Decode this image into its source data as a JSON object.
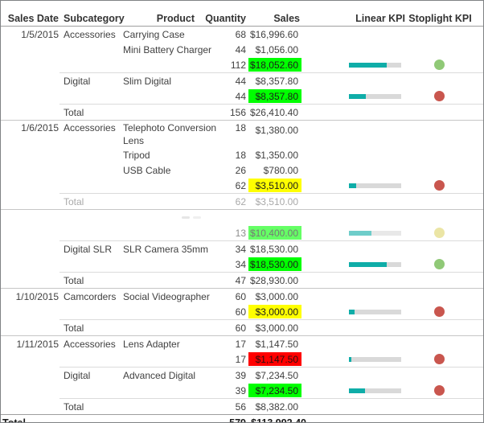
{
  "header": {
    "columns": [
      "Sales Date",
      "Subcategory",
      "Product",
      "Quantity",
      "Sales",
      "Linear KPI",
      "Stoplight KPI"
    ]
  },
  "colors": {
    "cell_green": "#00ff00",
    "cell_yellow": "#ffff00",
    "cell_red": "#ff0000",
    "bar_fill": "#0fada8",
    "bar_track": "#d9d9d9",
    "stoplight_green": "#90c977",
    "stoplight_red": "#c9564e",
    "stoplight_yellow": "#ddd469"
  },
  "rows": [
    {
      "type": "data",
      "date": "1/5/2015",
      "sub": "Accessories",
      "product": "Carrying Case",
      "qty": "68",
      "sales": "$16,996.60"
    },
    {
      "type": "data",
      "product": "Mini Battery Charger",
      "qty": "44",
      "sales": "$1,056.00"
    },
    {
      "type": "subtotal",
      "qty": "112",
      "sales": "$18,052.60",
      "bg": "green",
      "bar": 73,
      "dot": "green"
    },
    {
      "type": "data",
      "sep": "inner",
      "sub": "Digital",
      "product": "Slim Digital",
      "qty": "44",
      "sales": "$8,357.80"
    },
    {
      "type": "subtotal",
      "qty": "44",
      "sales": "$8,357.80",
      "bg": "green",
      "bar": 33,
      "dot": "red"
    },
    {
      "type": "total",
      "sep": "inner",
      "sub": "Total",
      "qty": "156",
      "sales": "$26,410.40"
    },
    {
      "type": "data",
      "sep": "full",
      "tall": true,
      "date": "1/6/2015",
      "sub": "Accessories",
      "product": "Telephoto Conversion\nLens",
      "qty": "18",
      "sales": "$1,380.00"
    },
    {
      "type": "data",
      "product": "Tripod",
      "qty": "18",
      "sales": "$1,350.00"
    },
    {
      "type": "data",
      "product": "USB Cable",
      "qty": "26",
      "sales": "$780.00"
    },
    {
      "type": "subtotal",
      "qty": "62",
      "sales": "$3,510.00",
      "bg": "yellow",
      "bar": 14,
      "dot": "red"
    },
    {
      "type": "total",
      "sep": "inner",
      "faded": 0.45,
      "sub": "Total",
      "qty": "62",
      "sales": "$3,510.00"
    },
    {
      "type": "ghost",
      "sep": "full"
    },
    {
      "type": "subtotal",
      "faded": 0.6,
      "qty": "13",
      "sales": "$10,400.00",
      "bg": "green",
      "bar": 43,
      "dot": "yellow"
    },
    {
      "type": "data",
      "sep": "inner",
      "sub": "Digital SLR",
      "product": "SLR Camera 35mm",
      "qty": "34",
      "sales": "$18,530.00"
    },
    {
      "type": "subtotal",
      "qty": "34",
      "sales": "$18,530.00",
      "bg": "green",
      "bar": 72,
      "dot": "green"
    },
    {
      "type": "total",
      "sep": "inner",
      "sub": "Total",
      "qty": "47",
      "sales": "$28,930.00"
    },
    {
      "type": "data",
      "sep": "full",
      "date": "1/10/2015",
      "sub": "Camcorders",
      "product": "Social Videographer",
      "qty": "60",
      "sales": "$3,000.00"
    },
    {
      "type": "subtotal",
      "qty": "60",
      "sales": "$3,000.00",
      "bg": "yellow",
      "bar": 10,
      "dot": "red"
    },
    {
      "type": "total",
      "sep": "inner",
      "sub": "Total",
      "qty": "60",
      "sales": "$3,000.00"
    },
    {
      "type": "data",
      "sep": "full",
      "date": "1/11/2015",
      "sub": "Accessories",
      "product": "Lens Adapter",
      "qty": "17",
      "sales": "$1,147.50"
    },
    {
      "type": "subtotal",
      "qty": "17",
      "sales": "$1,147.50",
      "bg": "red",
      "bar": 5,
      "dot": "red"
    },
    {
      "type": "data",
      "sep": "inner",
      "sub": "Digital",
      "product": "Advanced Digital",
      "qty": "39",
      "sales": "$7,234.50"
    },
    {
      "type": "subtotal",
      "qty": "39",
      "sales": "$7,234.50",
      "bg": "green",
      "bar": 30,
      "dot": "red"
    },
    {
      "type": "total",
      "sep": "inner",
      "sub": "Total",
      "qty": "56",
      "sales": "$8,382.00"
    },
    {
      "type": "grand",
      "sep": "grand",
      "date": "Total",
      "qty": "579",
      "sales": "$113,992.40"
    }
  ]
}
